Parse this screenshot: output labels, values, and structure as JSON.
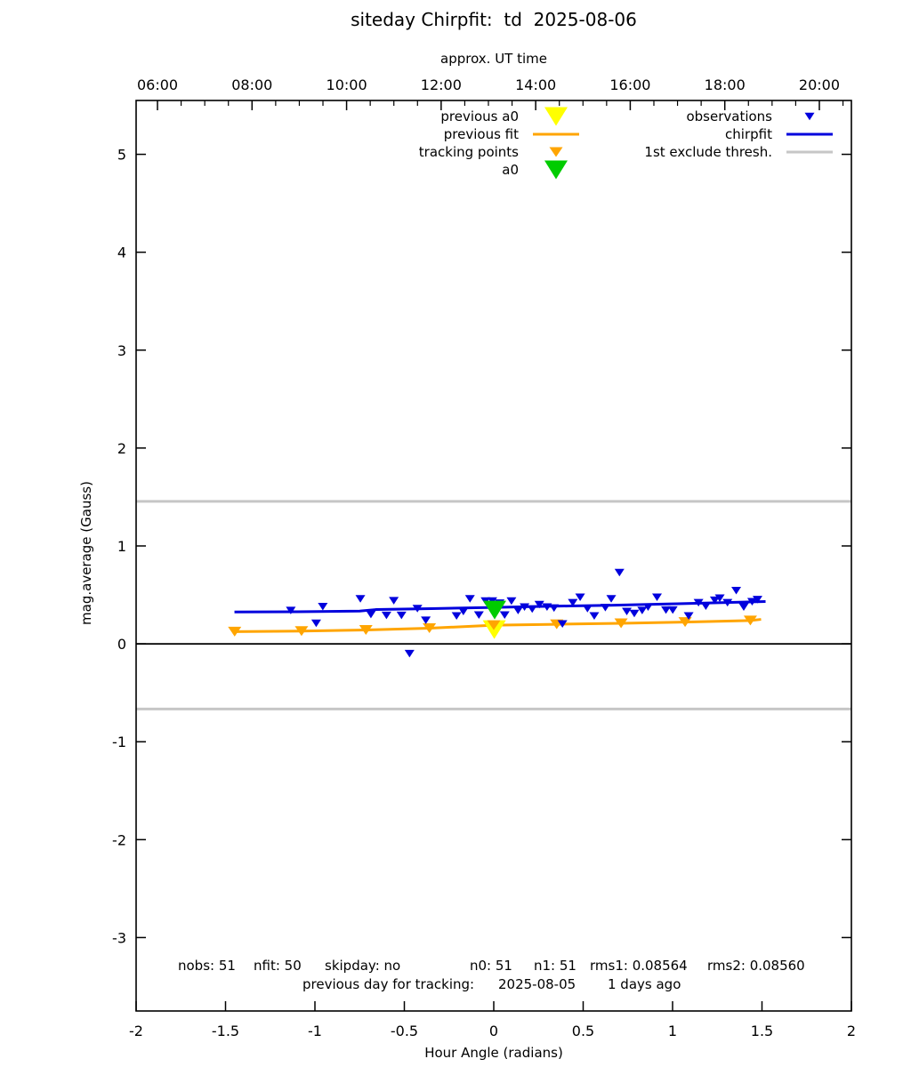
{
  "title": "siteday Chirpfit:  td  2025-08-06",
  "chart_data": {
    "type": "scatter",
    "title": "siteday Chirpfit:  td  2025-08-06",
    "top_axis": {
      "label": "approx. UT time",
      "tick_labels": [
        "06:00",
        "08:00",
        "10:00",
        "12:00",
        "14:00",
        "16:00",
        "18:00",
        "20:00"
      ],
      "tick_hours": [
        6,
        8,
        10,
        12,
        14,
        16,
        18,
        20
      ],
      "minor_tick_step_hours": 0.5,
      "minor_tick_range_hours": [
        6.5,
        20.5
      ],
      "hour_to_radian_slope": 0.26438,
      "hour_to_radian_intercept": -3.4668
    },
    "x_axis": {
      "label": "Hour Angle (radians)",
      "min": -2,
      "max": 2,
      "ticks": [
        -2,
        -1.5,
        -1,
        -0.5,
        0,
        0.5,
        1,
        1.5,
        2
      ],
      "tick_labels": [
        "-2",
        "-1.5",
        "-1",
        "-0.5",
        "0",
        "0.5",
        "1",
        "1.5",
        "2"
      ]
    },
    "y_axis": {
      "label": "mag.average (Gauss)",
      "min": -3.75,
      "max": 5.55,
      "ticks": [
        -3,
        -2,
        -1,
        0,
        1,
        2,
        3,
        4,
        5
      ],
      "tick_labels": [
        "-3",
        "-2",
        "-1",
        "0",
        "1",
        "2",
        "3",
        "4",
        "5"
      ]
    },
    "grid": false,
    "colors": {
      "observations": "#0000dd",
      "chirpfit": "#0000dd",
      "previous_fit": "#ffa500",
      "tracking_points": "#ffa500",
      "previous_a0": "#ffff00",
      "a0": "#00cc00",
      "exclude_threshold": "#c6c6c6",
      "zero_line": "#000000"
    },
    "series": {
      "observations": [
        [
          -1.135,
          0.34
        ],
        [
          -0.993,
          0.21
        ],
        [
          -0.956,
          0.38
        ],
        [
          -0.746,
          0.46
        ],
        [
          -0.687,
          0.3
        ],
        [
          -0.6,
          0.29
        ],
        [
          -0.559,
          0.44
        ],
        [
          -0.516,
          0.29
        ],
        [
          -0.471,
          -0.1
        ],
        [
          -0.427,
          0.36
        ],
        [
          -0.38,
          0.24
        ],
        [
          -0.208,
          0.285
        ],
        [
          -0.17,
          0.33
        ],
        [
          -0.133,
          0.46
        ],
        [
          -0.083,
          0.294
        ],
        [
          -0.046,
          0.437
        ],
        [
          -0.008,
          0.437
        ],
        [
          0.033,
          0.415
        ],
        [
          0.061,
          0.294
        ],
        [
          0.099,
          0.437
        ],
        [
          0.136,
          0.34
        ],
        [
          0.172,
          0.375
        ],
        [
          0.215,
          0.355
        ],
        [
          0.255,
          0.4
        ],
        [
          0.298,
          0.375
        ],
        [
          0.337,
          0.365
        ],
        [
          0.384,
          0.203
        ],
        [
          0.442,
          0.42
        ],
        [
          0.483,
          0.475
        ],
        [
          0.524,
          0.36
        ],
        [
          0.562,
          0.285
        ],
        [
          0.624,
          0.37
        ],
        [
          0.657,
          0.46
        ],
        [
          0.703,
          0.727
        ],
        [
          0.744,
          0.33
        ],
        [
          0.786,
          0.31
        ],
        [
          0.83,
          0.34
        ],
        [
          0.863,
          0.375
        ],
        [
          0.913,
          0.475
        ],
        [
          0.963,
          0.345
        ],
        [
          1.001,
          0.345
        ],
        [
          1.09,
          0.285
        ],
        [
          1.145,
          0.42
        ],
        [
          1.186,
          0.385
        ],
        [
          1.236,
          0.445
        ],
        [
          1.264,
          0.466
        ],
        [
          1.307,
          0.42
        ],
        [
          1.356,
          0.543
        ],
        [
          1.398,
          0.376
        ],
        [
          1.445,
          0.43
        ],
        [
          1.475,
          0.452
        ]
      ],
      "chirpfit_line": [
        [
          -1.45,
          0.325
        ],
        [
          -1.1,
          0.328
        ],
        [
          -0.75,
          0.335
        ],
        [
          -0.66,
          0.35
        ],
        [
          -0.35,
          0.36
        ],
        [
          0.0,
          0.372
        ],
        [
          0.3,
          0.383
        ],
        [
          0.42,
          0.387
        ],
        [
          0.65,
          0.394
        ],
        [
          1.0,
          0.408
        ],
        [
          1.3,
          0.422
        ],
        [
          1.52,
          0.432
        ]
      ],
      "previous_fit_line": [
        [
          -1.449,
          0.125
        ],
        [
          -1.075,
          0.13
        ],
        [
          -0.715,
          0.142
        ],
        [
          -0.36,
          0.16
        ],
        [
          0.0,
          0.19
        ],
        [
          0.352,
          0.2
        ],
        [
          0.712,
          0.21
        ],
        [
          1.07,
          0.222
        ],
        [
          1.435,
          0.238
        ],
        [
          1.495,
          0.25
        ]
      ],
      "tracking_points": [
        [
          -1.449,
          0.125
        ],
        [
          -1.075,
          0.13
        ],
        [
          -0.715,
          0.142
        ],
        [
          -0.36,
          0.16
        ],
        [
          0.0,
          0.19
        ],
        [
          0.352,
          0.2
        ],
        [
          0.712,
          0.21
        ],
        [
          1.07,
          0.222
        ],
        [
          1.435,
          0.238
        ]
      ],
      "previous_a0": [
        0.003,
        0.145
      ],
      "a0": [
        0.005,
        0.345
      ],
      "exclude_threshold_upper": 1.455,
      "exclude_threshold_lower": -0.665
    },
    "legend": [
      {
        "label": "previous a0",
        "marker": "triangle-big",
        "color": "#ffff00",
        "column": "left",
        "row": 0
      },
      {
        "label": "previous fit",
        "marker": "line",
        "color": "#ffa500",
        "column": "left",
        "row": 1
      },
      {
        "label": "tracking points",
        "marker": "triangle-small",
        "color": "#ffa500",
        "column": "left",
        "row": 2
      },
      {
        "label": "a0",
        "marker": "triangle-big",
        "color": "#00cc00",
        "column": "left",
        "row": 3
      },
      {
        "label": "observations",
        "marker": "triangle-tiny",
        "color": "#0000dd",
        "column": "right",
        "row": 0
      },
      {
        "label": "chirpfit",
        "marker": "line",
        "color": "#0000dd",
        "column": "right",
        "row": 1
      },
      {
        "label": "1st exclude thresh.",
        "marker": "line",
        "color": "#c6c6c6",
        "column": "right",
        "row": 2
      }
    ],
    "stats": {
      "nobs": "nobs: 51",
      "nfit": "nfit: 50",
      "skipday": "skipday: no",
      "n0": "n0: 51",
      "n1": "n1: 51",
      "rms1": "rms1: 0.08564",
      "rms2": "rms2: 0.08560",
      "prev_label": "previous day for tracking:",
      "prev_date": "2025-08-05",
      "days_ago": "1 days ago"
    }
  }
}
